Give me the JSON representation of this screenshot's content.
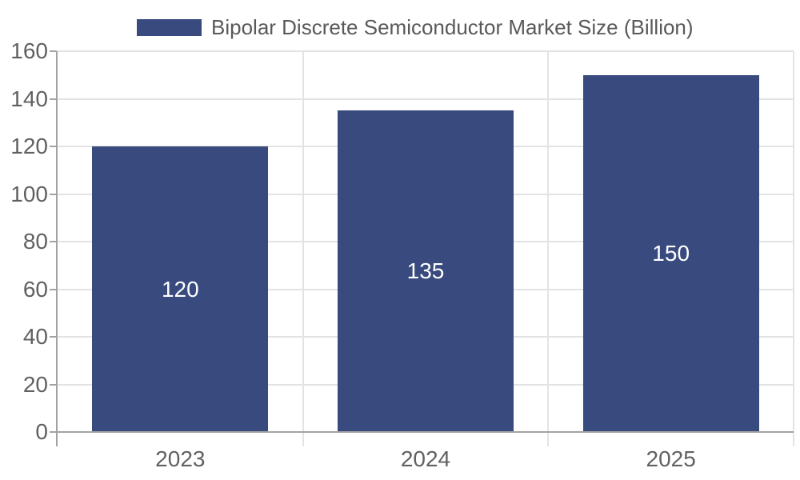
{
  "legend": {
    "label": "Bipolar Discrete Semiconductor Market Size (Billion)"
  },
  "colors": {
    "bar": "#384A7E",
    "grid": "#e3e3e3",
    "axis": "#a3a3a3",
    "tick_text": "#616161",
    "legend_text": "#595959",
    "bar_label_text": "#ffffff",
    "background": "#ffffff"
  },
  "chart_data": {
    "type": "bar",
    "categories": [
      "2023",
      "2024",
      "2025"
    ],
    "values": [
      120,
      135,
      150
    ],
    "title": "Bipolar Discrete Semiconductor Market Size (Billion)",
    "xlabel": "",
    "ylabel": "",
    "ylim": [
      0,
      160
    ],
    "ytick_step": 20,
    "yticks": [
      0,
      20,
      40,
      60,
      80,
      100,
      120,
      140,
      160
    ],
    "grid": true,
    "legend_position": "top",
    "bar_labels_inside": true
  }
}
